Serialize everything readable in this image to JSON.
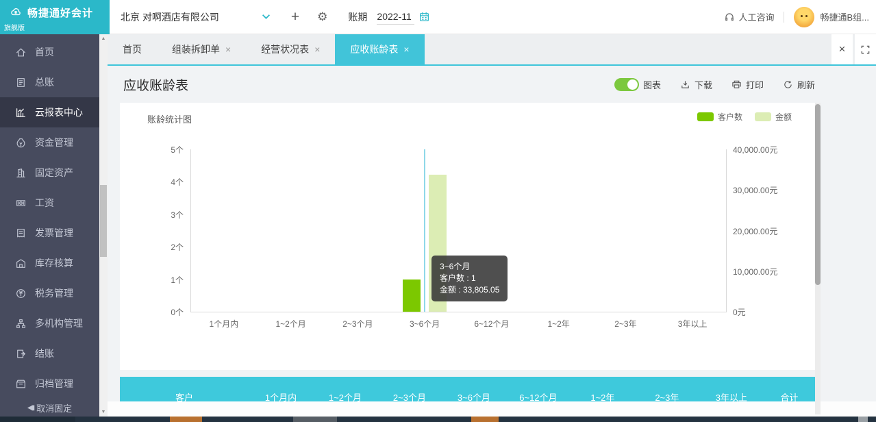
{
  "topbar": {
    "brand": "畅捷通好会计",
    "edition": "旗舰版",
    "company": "北京 对啊酒店有限公司",
    "period_label": "账期",
    "period_value": "2022-11",
    "support": "人工咨询",
    "username": "畅捷通B组..."
  },
  "icons": {
    "plus": "+",
    "gear": "⚙",
    "close": "×",
    "unpin_arrow": "◀▮",
    "scroll_up": "▲",
    "scroll_down": "▼"
  },
  "tabs": {
    "active_index": 3,
    "items": [
      {
        "key": "home",
        "label": "首页",
        "closable": false
      },
      {
        "key": "assembly",
        "label": "组装拆卸单",
        "closable": true
      },
      {
        "key": "operating-status",
        "label": "经营状况表",
        "closable": true
      },
      {
        "key": "receivable-aging",
        "label": "应收账龄表",
        "closable": true
      }
    ]
  },
  "sidebar": {
    "active_index": 2,
    "items": [
      {
        "key": "home",
        "icon": "home-icon",
        "label": "首页"
      },
      {
        "key": "general-ledger",
        "icon": "ledger-icon",
        "label": "总账"
      },
      {
        "key": "cloud-reports",
        "icon": "report-icon",
        "label": "云报表中心"
      },
      {
        "key": "funds",
        "icon": "fund-icon",
        "label": "资金管理"
      },
      {
        "key": "fixed-assets",
        "icon": "asset-icon",
        "label": "固定资产"
      },
      {
        "key": "payroll",
        "icon": "payroll-icon",
        "label": "工资"
      },
      {
        "key": "invoices",
        "icon": "invoice-icon",
        "label": "发票管理"
      },
      {
        "key": "inventory",
        "icon": "inventory-icon",
        "label": "库存核算"
      },
      {
        "key": "tax",
        "icon": "tax-icon",
        "label": "税务管理"
      },
      {
        "key": "multi-org",
        "icon": "org-icon",
        "label": "多机构管理"
      },
      {
        "key": "closing",
        "icon": "closing-icon",
        "label": "结账"
      },
      {
        "key": "archive",
        "icon": "archive-icon",
        "label": "归档管理"
      }
    ],
    "unpin": "取消固定"
  },
  "page": {
    "title": "应收账龄表",
    "toggle_label": "图表",
    "download": "下载",
    "print": "打印",
    "refresh": "刷新"
  },
  "chart_data": {
    "type": "bar",
    "title": "账龄统计图",
    "categories": [
      "1个月内",
      "1~2个月",
      "2~3个月",
      "3~6个月",
      "6~12个月",
      "1~2年",
      "2~3年",
      "3年以上"
    ],
    "series": [
      {
        "name": "客户数",
        "axis": "left",
        "color": "#7cc800",
        "values": [
          0,
          0,
          0,
          1,
          0,
          0,
          0,
          0
        ]
      },
      {
        "name": "金额",
        "axis": "right",
        "color": "#dcedb4",
        "values": [
          0,
          0,
          0,
          33805.05,
          0,
          0,
          0,
          0
        ]
      }
    ],
    "left_axis": {
      "ticks": [
        "0个",
        "1个",
        "2个",
        "3个",
        "4个",
        "5个"
      ],
      "max": 5
    },
    "right_axis": {
      "ticks": [
        "0元",
        "10,000.00元",
        "20,000.00元",
        "30,000.00元",
        "40,000.00元"
      ],
      "max": 40000
    },
    "legend": [
      "客户数",
      "金额"
    ],
    "legend_position": "top-right",
    "grid": false,
    "highlight_category_index": 3
  },
  "tooltip": {
    "category": "3~6个月",
    "rows": [
      {
        "label": "客户数",
        "value": "1"
      },
      {
        "label": "金额",
        "value": "33,805.05"
      }
    ]
  },
  "table": {
    "headers": [
      "客户",
      "1个月内",
      "1~2个月",
      "2~3个月",
      "3~6个月",
      "6~12个月",
      "1~2年",
      "2~3年",
      "3年以上",
      "合计"
    ],
    "header_flex": [
      2,
      1,
      1,
      1,
      1,
      1,
      1,
      1,
      1,
      0.8
    ]
  },
  "colors": {
    "brand_teal": "#2bb8c9",
    "active_tab": "#41c4d9",
    "tab_underline": "#3ec5da",
    "table_header": "#3ec9dc",
    "toggle_green": "#7cc83e",
    "bar_count": "#7cc800",
    "bar_amount": "#dcedb4",
    "sidebar_bg": "#474b5e",
    "sidebar_active": "#343747",
    "crosshair": "#8fd8e8"
  }
}
